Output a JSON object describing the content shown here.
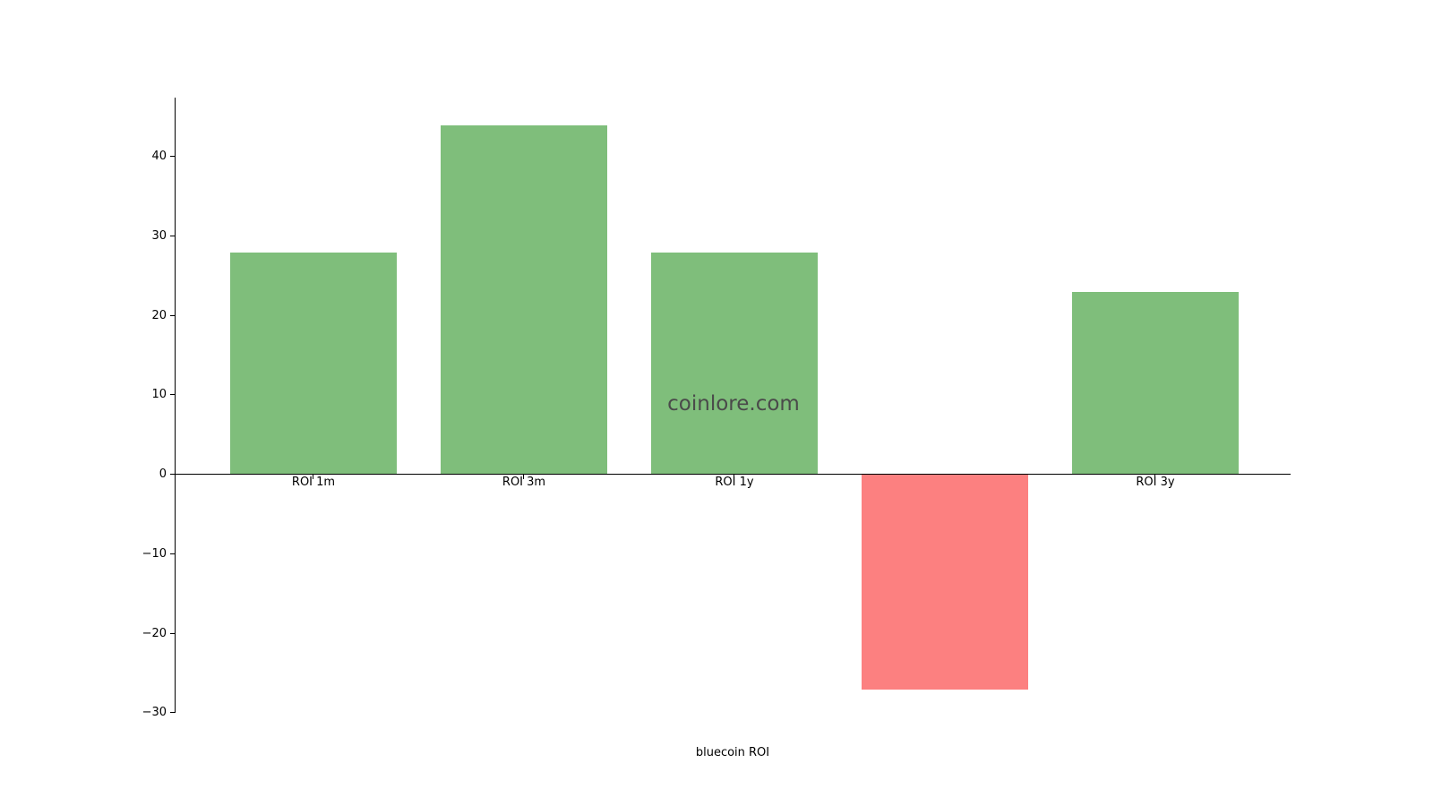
{
  "chart_data": {
    "type": "bar",
    "title": "",
    "xlabel": "bluecoin ROI",
    "ylabel": "",
    "categories": [
      "ROI 1m",
      "ROI 3m",
      "ROI 1y",
      null,
      "ROI 3y"
    ],
    "values": [
      28,
      44,
      28,
      -27,
      23
    ],
    "bar_colors": [
      "#7fbe7b",
      "#7fbe7b",
      "#7fbe7b",
      "#fc8080",
      "#7fbe7b"
    ],
    "positive_color": "#7fbe7b",
    "negative_color": "#fc8080",
    "ylim": [
      -30,
      47.4
    ],
    "yticks": [
      40,
      30,
      20,
      10,
      0,
      -10,
      -20,
      -30
    ],
    "ytick_labels": [
      "40",
      "30",
      "20",
      "10",
      "0",
      "−10",
      "−20",
      "−30"
    ],
    "grid": false,
    "legend_position": "none",
    "watermark": "coinlore.com",
    "axis_color": "#000000",
    "background_color": "#ffffff"
  }
}
